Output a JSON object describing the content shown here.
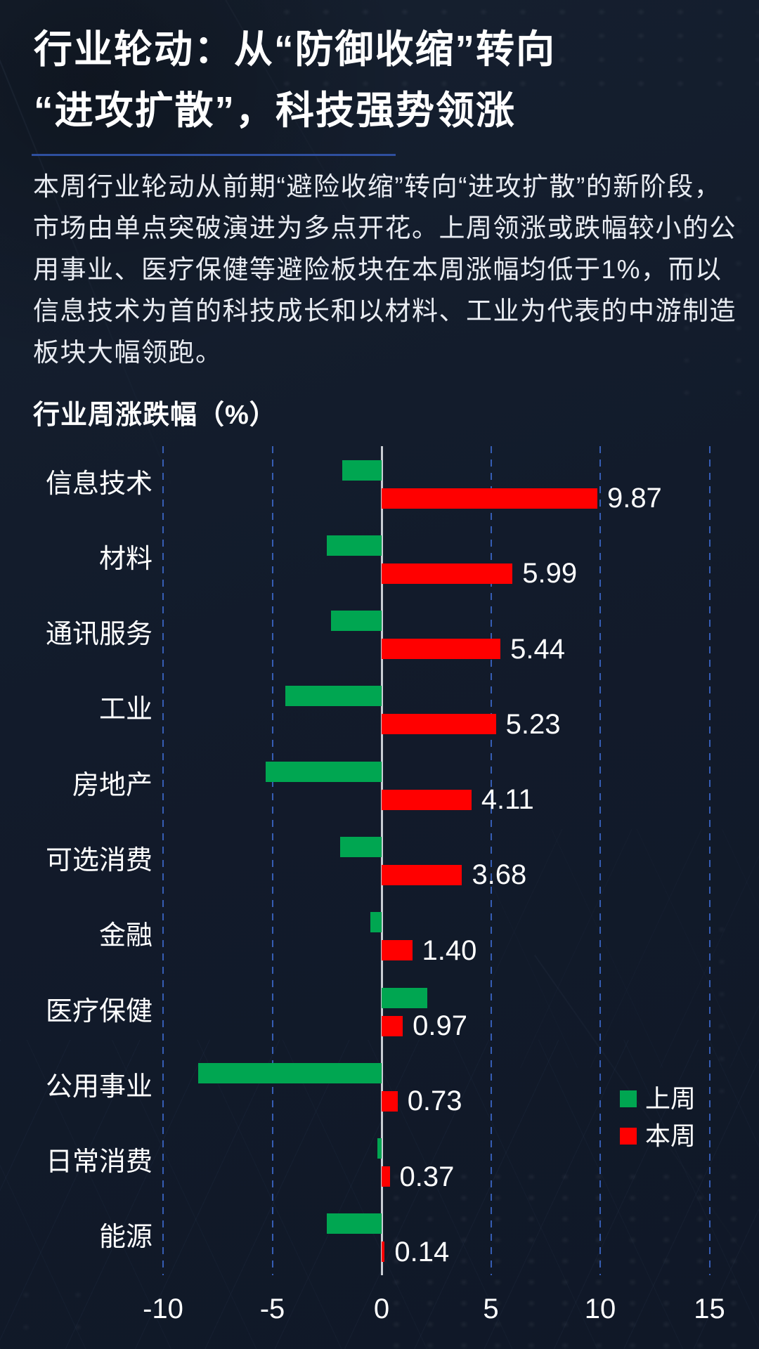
{
  "header": {
    "title_lines": [
      "行业轮动：从“防御收缩”转向",
      "“进攻扩散”，科技强势领涨"
    ]
  },
  "intro": {
    "text": "本周行业轮动从前期“避险收缩”转向“进攻扩散”的新阶段，市场由单点突破演进为多点开花。上周领涨或跌幅较小的公用事业、医疗保健等避险板块在本周涨幅均低于1%，而以信息技术为首的科技成长和以材料、工业为代表的中游制造板块大幅领跑。",
    "highlight_threshold": "1%"
  },
  "chart_data": {
    "type": "bar",
    "orientation": "horizontal",
    "title": "行业周涨跌幅（%）",
    "categories": [
      "信息技术",
      "材料",
      "通讯服务",
      "工业",
      "房地产",
      "可选消费",
      "金融",
      "医疗保健",
      "公用事业",
      "日常消费",
      "能源"
    ],
    "series": [
      {
        "name": "上周",
        "color": "#00a651",
        "values": [
          -1.8,
          -2.5,
          -2.3,
          -4.4,
          -5.3,
          -1.9,
          -0.5,
          2.1,
          -8.4,
          -0.2,
          -2.5
        ]
      },
      {
        "name": "本周",
        "color": "#ff0000",
        "values": [
          9.87,
          5.99,
          5.44,
          5.23,
          4.11,
          3.68,
          1.4,
          0.97,
          0.73,
          0.37,
          0.14
        ],
        "value_labels": [
          "9.87",
          "5.99",
          "5.44",
          "5.23",
          "4.11",
          "3.68",
          "1.40",
          "0.97",
          "0.73",
          "0.37",
          "0.14"
        ]
      }
    ],
    "x_ticks": [
      -10,
      -5,
      0,
      5,
      10,
      15
    ],
    "xlim": [
      -12,
      17
    ],
    "grid": "vertical-dashed",
    "legend_position": "right-middle",
    "value_labels_on": "本周",
    "colors": {
      "background": "#131c2c",
      "grid_dashed": "#3d69cc",
      "zero_axis": "#c9cdd3",
      "text": "#ffffff",
      "title_underline": "#2e4f9e",
      "up_bar": "#ff0000",
      "last_week_bar": "#00a651"
    }
  }
}
